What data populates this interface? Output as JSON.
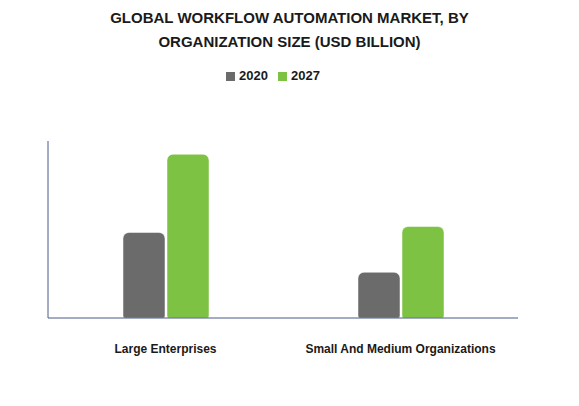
{
  "chart_data": {
    "type": "bar",
    "title": "GLOBAL WORKFLOW AUTOMATION MARKET, BY ORGANIZATION SIZE (USD BILLION)",
    "categories": [
      "Large Enterprises",
      "Small And Medium Organizations"
    ],
    "series": [
      {
        "name": "2020",
        "color": "#6b6b6b",
        "values": [
          5.8,
          3.1
        ]
      },
      {
        "name": "2027",
        "color": "#7dc242",
        "values": [
          11.1,
          6.2
        ]
      }
    ],
    "ylim": [
      0,
      12
    ],
    "legend": "top",
    "tick_labels": "x"
  }
}
